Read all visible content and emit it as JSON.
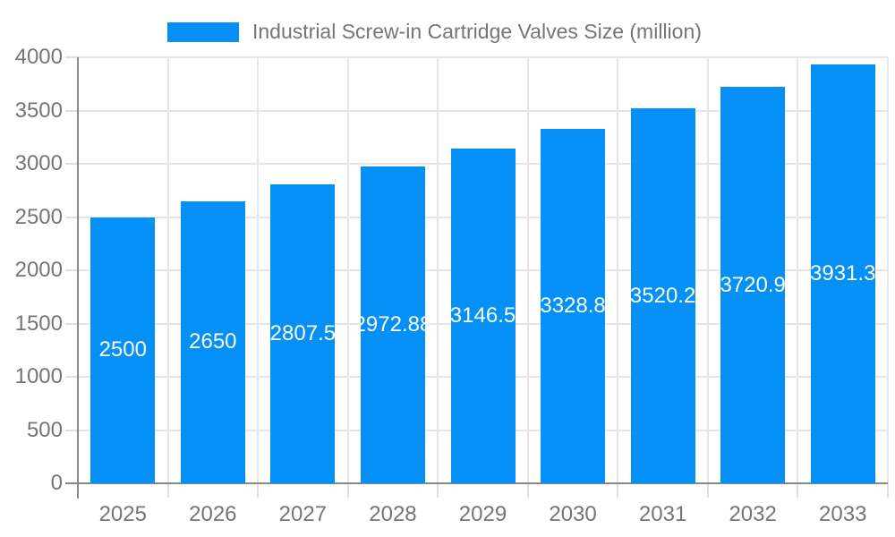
{
  "legend": {
    "label": "Industrial Screw-in Cartridge Valves Size (million)"
  },
  "chart_data": {
    "type": "bar",
    "title": "Industrial Screw-in Cartridge Valves Size (million)",
    "categories": [
      "2025",
      "2026",
      "2027",
      "2028",
      "2029",
      "2030",
      "2031",
      "2032",
      "2033"
    ],
    "values": [
      2500,
      2650,
      2807.5,
      2972.88,
      3146.5,
      3328.8,
      3520.2,
      3720.9,
      3931.3
    ],
    "value_labels": [
      "2500",
      "2650",
      "2807.5",
      "2972.88",
      "3146.5",
      "3328.8",
      "3520.2",
      "3720.9",
      "3931.3"
    ],
    "xlabel": "",
    "ylabel": "",
    "ylim": [
      0,
      4000
    ],
    "yticks": [
      0,
      500,
      1000,
      1500,
      2000,
      2500,
      3000,
      3500,
      4000
    ],
    "grid": true,
    "legend_position": "top",
    "colors": {
      "bar": "#0590f8",
      "grid": "#e6e6e6",
      "axis": "#888888",
      "tick": "#e0e0e0",
      "axis_text": "#757575",
      "value_text": "#ffffff",
      "background": "#ffffff"
    }
  }
}
